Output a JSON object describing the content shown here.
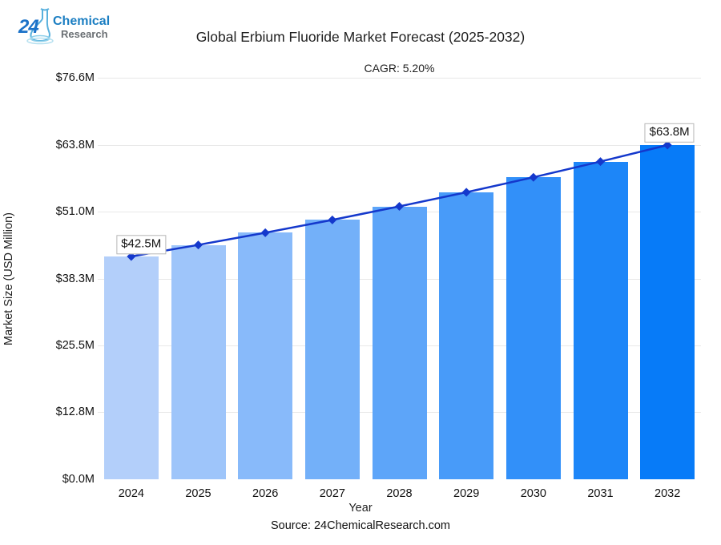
{
  "logo": {
    "number": "24",
    "line1": "Chemical",
    "line2": "Research"
  },
  "header": {
    "title": "Global Erbium Fluoride Market Forecast (2025-2032)",
    "subtitle": "CAGR: 5.20%"
  },
  "footer": {
    "source": "Source: 24ChemicalResearch.com"
  },
  "chart_data": {
    "type": "bar",
    "overlay": "line",
    "title": "Global Erbium Fluoride Market Forecast (2025-2032)",
    "subtitle": "CAGR: 5.20%",
    "xlabel": "Year",
    "ylabel": "Market Size (USD Million)",
    "categories": [
      "2024",
      "2025",
      "2026",
      "2027",
      "2028",
      "2029",
      "2030",
      "2031",
      "2032"
    ],
    "values": [
      42.5,
      44.71,
      47.04,
      49.48,
      52.06,
      54.76,
      57.61,
      60.61,
      63.76
    ],
    "ylim": [
      0,
      76.6
    ],
    "yticks": [
      {
        "value": 76.6,
        "label": "$76.6M"
      },
      {
        "value": 63.8,
        "label": "$63.8M"
      },
      {
        "value": 51.0,
        "label": "$51.0M"
      },
      {
        "value": 38.3,
        "label": "$38.3M"
      },
      {
        "value": 25.5,
        "label": "$25.5M"
      },
      {
        "value": 12.8,
        "label": "$12.8M"
      },
      {
        "value": 0.0,
        "label": "$0.0M"
      }
    ],
    "annotations": [
      {
        "index": 0,
        "label": "$42.5M"
      },
      {
        "index": 8,
        "label": "$63.8M"
      }
    ],
    "bar_colors": [
      "#b3cffa",
      "#9ec5fa",
      "#88bafa",
      "#73b0f9",
      "#5da5f9",
      "#489bf9",
      "#3290f9",
      "#1d86f8",
      "#077bf8"
    ],
    "line_color": "#1438cc",
    "marker": "diamond",
    "grid": true,
    "gridline_color": "#e8e8e8",
    "legend": "none",
    "background": "#ffffff"
  }
}
